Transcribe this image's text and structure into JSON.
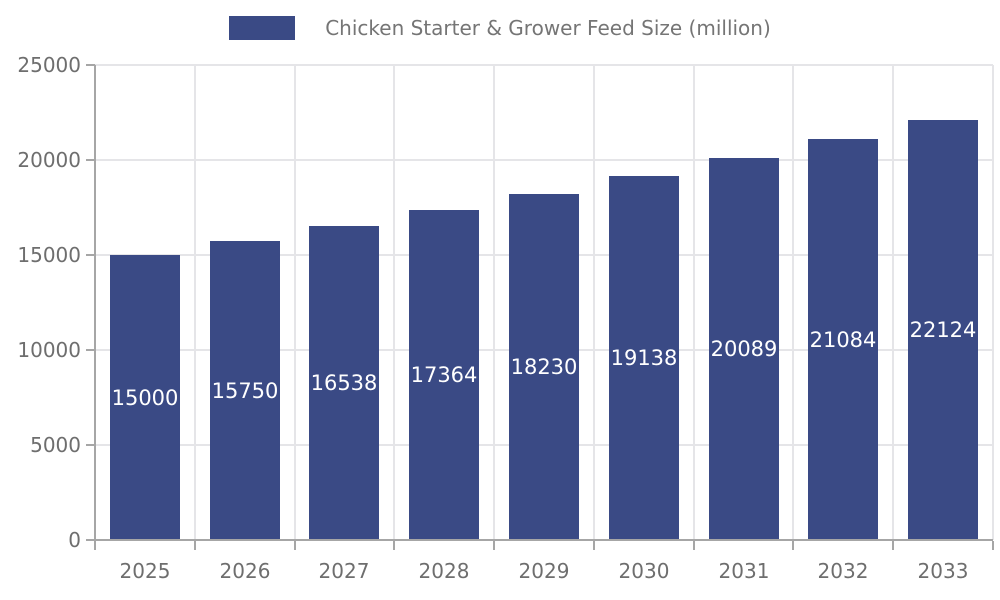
{
  "legend": {
    "label": "Chicken Starter & Grower Feed Size (million)"
  },
  "chart_data": {
    "type": "bar",
    "title": "",
    "xlabel": "",
    "ylabel": "",
    "categories": [
      "2025",
      "2026",
      "2027",
      "2028",
      "2029",
      "2030",
      "2031",
      "2032",
      "2033"
    ],
    "values": [
      15000,
      15750,
      16538,
      17364,
      18230,
      19138,
      20089,
      21084,
      22124
    ],
    "series_name": "Chicken Starter & Grower Feed Size (million)",
    "ylim": [
      0,
      25000
    ],
    "yticks": [
      0,
      5000,
      10000,
      15000,
      20000,
      25000
    ],
    "grid": true,
    "legend_position": "top",
    "colors": {
      "bar": "#3a4a85",
      "value_label": "#ffffff",
      "axis_label": "#6e6e6e",
      "legend_label": "#757575",
      "axis_line": "#a6a6a6",
      "grid_line": "#e5e5e8"
    }
  }
}
